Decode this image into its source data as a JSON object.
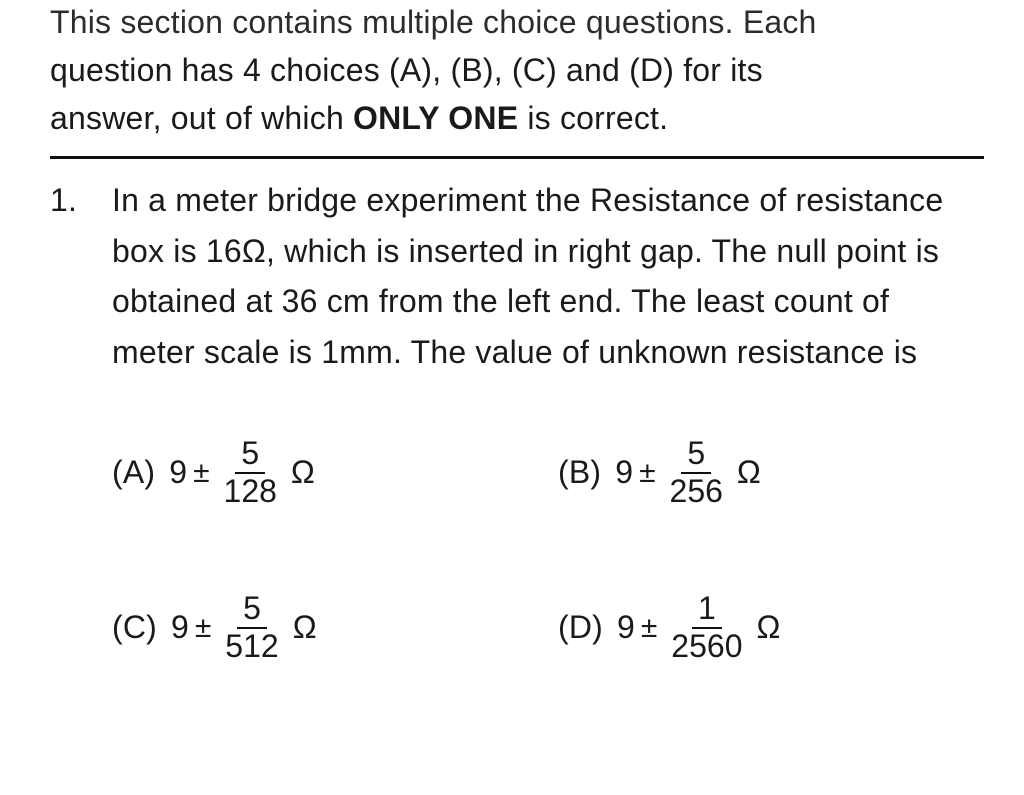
{
  "colors": {
    "text": "#1a1a1a",
    "background": "#ffffff",
    "rule": "#111111"
  },
  "instructions": {
    "line1_cutoff": "This section contains multiple choice questions. Each",
    "line2": "question has 4 choices (A), (B), (C) and (D) for its",
    "line3_prefix": "answer, out of which ",
    "line3_bold": "ONLY ONE",
    "line3_suffix": " is correct."
  },
  "question": {
    "number": "1.",
    "text": "In a meter bridge experiment the Resistance of resistance box is 16Ω, which is inserted in right gap. The null point is obtained at 36 cm from the left end. The least count of meter scale is 1mm. The value of unknown resistance is"
  },
  "options": {
    "A": {
      "label": "(A)",
      "lead": "9",
      "pm": "±",
      "num": "5",
      "den": "128",
      "unit": "Ω"
    },
    "B": {
      "label": "(B)",
      "lead": "9",
      "pm": "±",
      "num": "5",
      "den": "256",
      "unit": "Ω"
    },
    "C": {
      "label": "(C)",
      "lead": "9",
      "pm": "±",
      "num": "5",
      "den": "512",
      "unit": "Ω"
    },
    "D": {
      "label": "(D)",
      "lead": "9",
      "pm": "±",
      "num": "1",
      "den": "2560",
      "unit": "Ω"
    }
  }
}
